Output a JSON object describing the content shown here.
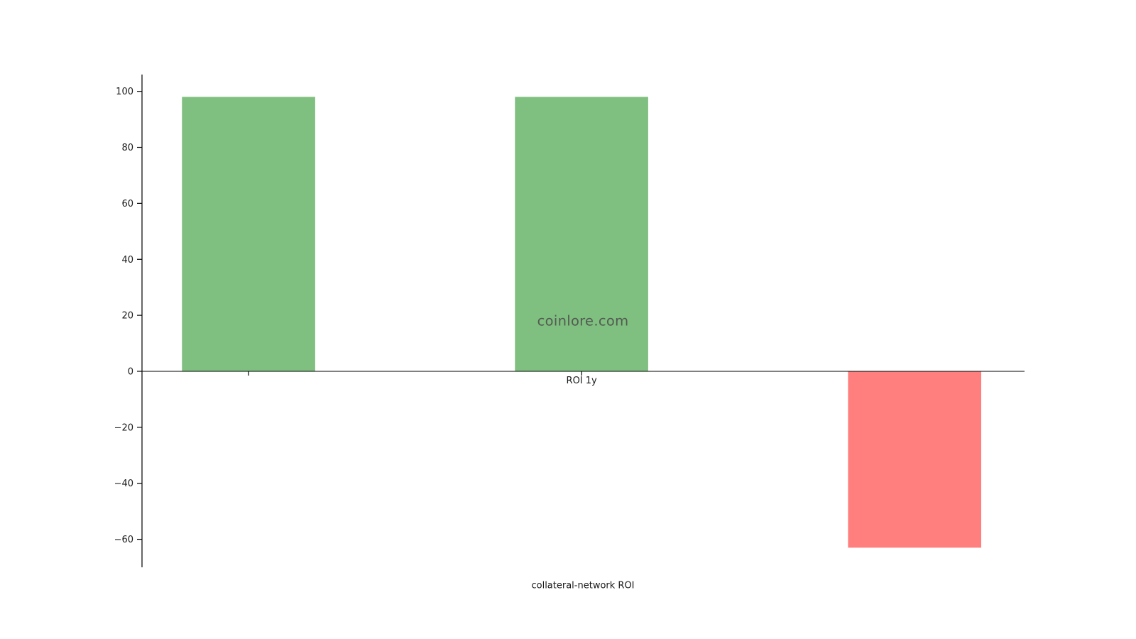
{
  "chart_data": {
    "type": "bar",
    "title": "",
    "xlabel": "collateral-network ROI",
    "ylabel": "",
    "watermark": "coinlore.com",
    "categories": [
      "",
      "ROI 1y",
      ""
    ],
    "values": [
      98,
      98,
      -63
    ],
    "bar_colors": [
      "#7fbf7f",
      "#7fbf7f",
      "#ff7f7f"
    ],
    "bar_width": 0.4,
    "xlim": [
      -0.32,
      2.33
    ],
    "ylim": [
      -70,
      106
    ],
    "yticks": [
      100,
      80,
      60,
      40,
      20,
      0,
      -20,
      -40,
      -60
    ],
    "xticks": [
      {
        "pos": 0,
        "label": ""
      },
      {
        "pos": 1,
        "label": "ROI 1y"
      }
    ],
    "grid": false,
    "legend": "none",
    "axis_color": "#000000",
    "tick_label_color": "#1a1a1a",
    "watermark_color": "#4d4d4d",
    "background_color": "#ffffff"
  }
}
